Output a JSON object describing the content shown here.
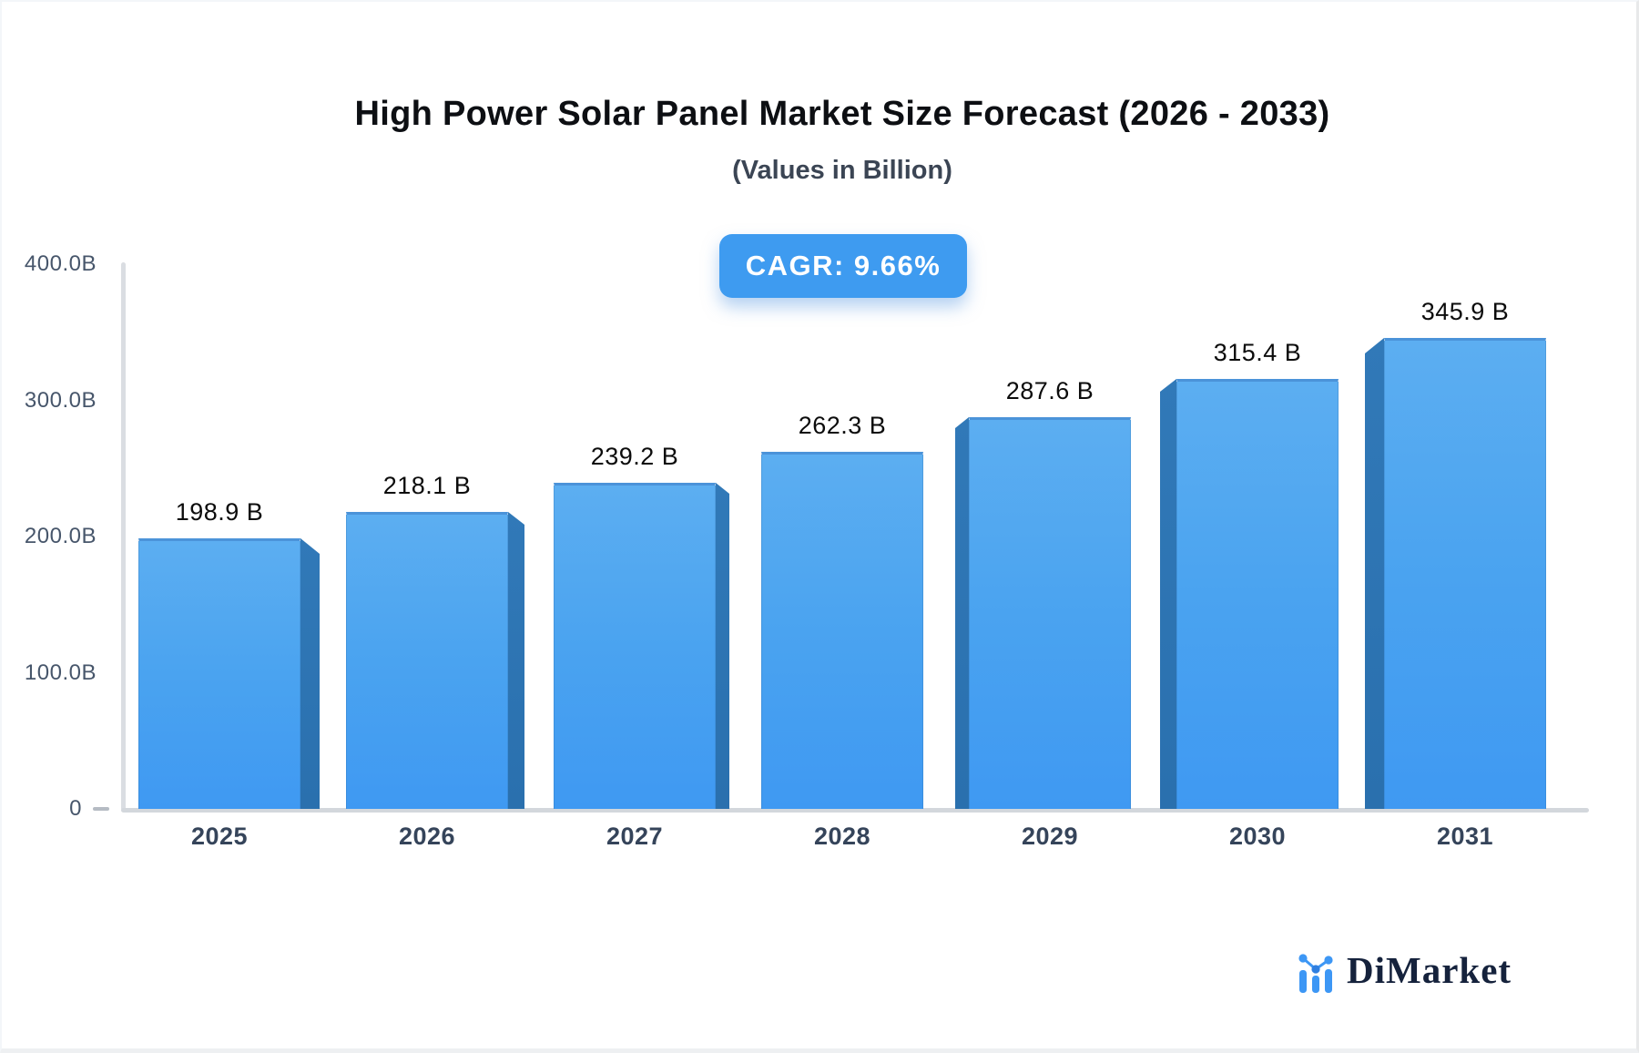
{
  "header": {
    "title": "High Power Solar Panel Market Size Forecast (2026 - 2033)",
    "subtitle": "(Values in Billion)"
  },
  "badge": {
    "label": "CAGR: 9.66%",
    "background_color": "#3e9bf0",
    "text_color": "#ffffff"
  },
  "chart_data": {
    "type": "bar",
    "title": "High Power Solar Panel Market Size Forecast (2026 - 2033)",
    "subtitle": "(Values in Billion)",
    "cagr": "9.66%",
    "categories": [
      "2025",
      "2026",
      "2027",
      "2028",
      "2029",
      "2030",
      "2031"
    ],
    "values": [
      198.9,
      218.1,
      239.2,
      262.3,
      287.6,
      315.4,
      345.9
    ],
    "value_labels": [
      "198.9 B",
      "218.1 B",
      "239.2 B",
      "262.3 B",
      "287.6 B",
      "315.4 B",
      "345.9 B"
    ],
    "y_ticks": [
      {
        "label": "400.0B",
        "value": 400
      },
      {
        "label": "300.0B",
        "value": 300
      },
      {
        "label": "200.0B",
        "value": 200
      },
      {
        "label": "100.0B",
        "value": 100
      },
      {
        "label": "0",
        "value": 0
      }
    ],
    "ylim": [
      0,
      400
    ],
    "grid": false,
    "legend": false,
    "bar_color": "#459ff1",
    "bar_side_color": "#2d75b4",
    "axis_color": "#d3d7dc"
  },
  "logo": {
    "text": "DiMarket",
    "icon": "bar-chart-logo-icon",
    "icon_color": "#3d97f5",
    "text_color": "#15223c"
  }
}
